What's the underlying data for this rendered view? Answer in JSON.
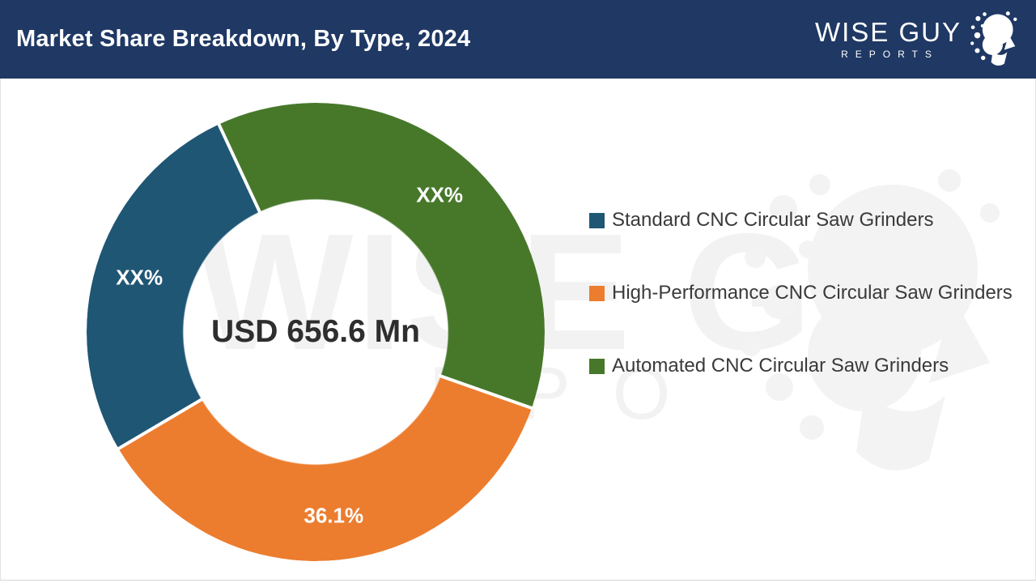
{
  "header": {
    "title": "Market Share Breakdown, By Type, 2024",
    "bg_color": "#1f3864",
    "logo": {
      "line1": "WISE GUY",
      "line2": "REPORTS"
    }
  },
  "chart_data": {
    "type": "pie",
    "subtype": "donut",
    "title": "Market Share Breakdown, By Type, 2024",
    "center_label": "USD 656.6 Mn",
    "legend_position": "right",
    "segments": [
      {
        "id": "standard",
        "name": "Standard CNC Circular Saw Grinders",
        "label": "XX%",
        "color": "#1f5674",
        "start_deg": 239.4,
        "sweep_deg": 95.6,
        "pct_estimated": 26.5
      },
      {
        "id": "high_performance",
        "name": "High-Performance CNC Circular Saw Grinders",
        "label": "36.1%",
        "color": "#ec7d2f",
        "start_deg": 109.4,
        "sweep_deg": 130.0,
        "pct_estimated": 36.1
      },
      {
        "id": "automated",
        "name": "Automated CNC Circular Saw Grinders",
        "label": "XX%",
        "color": "#47782a",
        "start_deg": -25.0,
        "sweep_deg": 134.4,
        "pct_estimated": 37.4
      }
    ]
  },
  "watermark": {
    "text1": "WISE GU",
    "text2": "EPO"
  }
}
